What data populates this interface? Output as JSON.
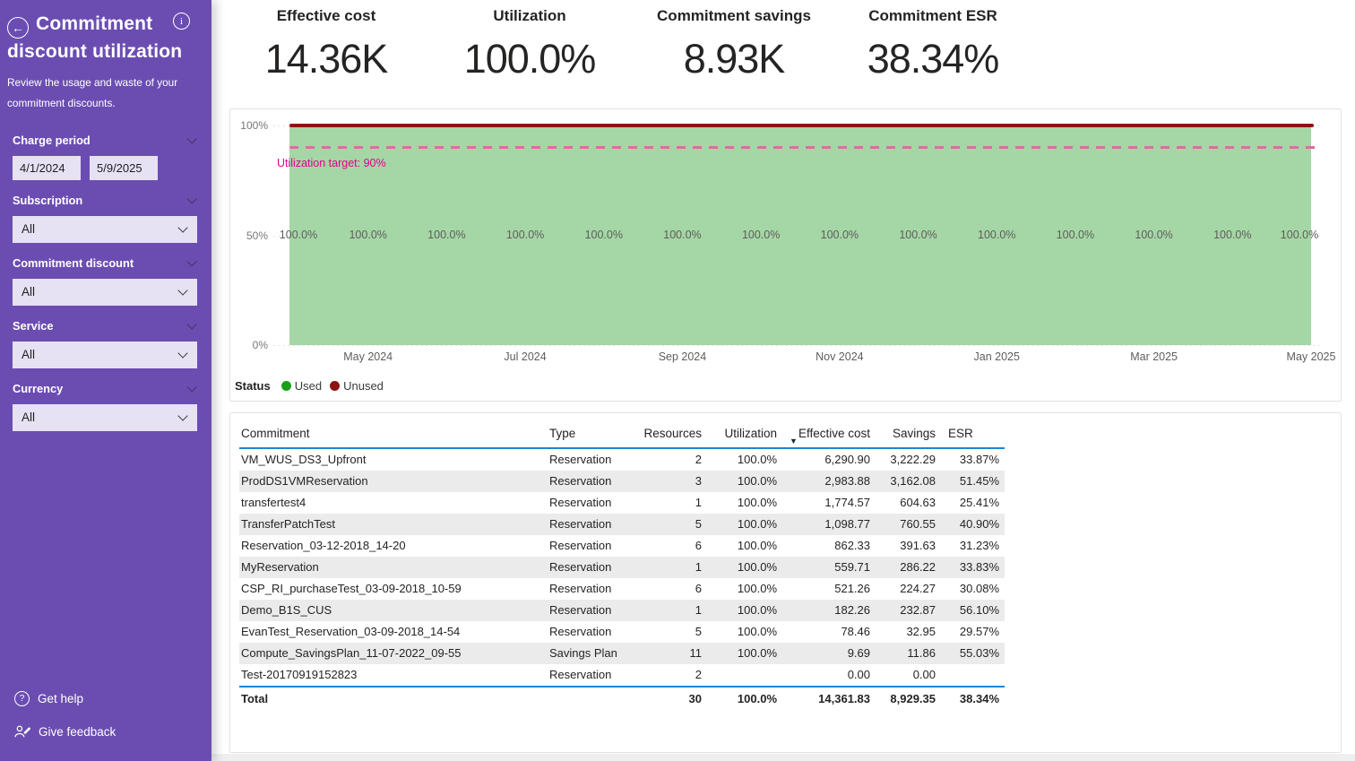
{
  "sidebar": {
    "title": "Commitment discount utilization",
    "subtitle": "Review the usage and waste of your commitment discounts.",
    "back_icon": "←",
    "info_icon": "i",
    "filters": [
      {
        "label": "Charge period",
        "type": "dates",
        "start": "4/1/2024",
        "end": "5/9/2025"
      },
      {
        "label": "Subscription",
        "type": "dropdown",
        "value": "All"
      },
      {
        "label": "Commitment discount",
        "type": "dropdown",
        "value": "All"
      },
      {
        "label": "Service",
        "type": "dropdown",
        "value": "All"
      },
      {
        "label": "Currency",
        "type": "dropdown",
        "value": "All"
      }
    ],
    "footer": {
      "help": "Get help",
      "feedback": "Give feedback"
    }
  },
  "kpis": [
    {
      "label": "Effective cost",
      "value": "14.36K"
    },
    {
      "label": "Utilization",
      "value": "100.0%"
    },
    {
      "label": "Commitment savings",
      "value": "8.93K"
    },
    {
      "label": "Commitment ESR",
      "value": "38.34%"
    }
  ],
  "chart_data": {
    "type": "area",
    "x": [
      "Apr 2024",
      "May 2024",
      "Jun 2024",
      "Jul 2024",
      "Aug 2024",
      "Sep 2024",
      "Oct 2024",
      "Nov 2024",
      "Dec 2024",
      "Jan 2025",
      "Feb 2025",
      "Mar 2025",
      "Apr 2025",
      "May 2025"
    ],
    "series": [
      {
        "name": "Used",
        "values": [
          100.0,
          100.0,
          100.0,
          100.0,
          100.0,
          100.0,
          100.0,
          100.0,
          100.0,
          100.0,
          100.0,
          100.0,
          100.0,
          100.0
        ],
        "color": "#18A018"
      },
      {
        "name": "Unused",
        "values": [
          0,
          0,
          0,
          0,
          0,
          0,
          0,
          0,
          0,
          0,
          0,
          0,
          0,
          0
        ],
        "color": "#8E1313"
      }
    ],
    "data_labels": [
      "100.0%",
      "100.0%",
      "100.0%",
      "100.0%",
      "100.0%",
      "100.0%",
      "100.0%",
      "100.0%",
      "100.0%",
      "100.0%",
      "100.0%",
      "100.0%",
      "100.0%",
      "100.0%"
    ],
    "target": {
      "label": "Utilization target: 90%",
      "value": 90,
      "color": "#E3008C"
    },
    "ylabel": "",
    "xlabel": "",
    "ylim": [
      0,
      100
    ],
    "y_ticks": [
      "100%",
      "50%",
      "0%"
    ],
    "x_ticks": [
      "May 2024",
      "Jul 2024",
      "Sep 2024",
      "Nov 2024",
      "Jan 2025",
      "Mar 2025",
      "May 2025"
    ],
    "legend": {
      "title": "Status",
      "position": "bottom-left",
      "items": [
        {
          "label": "Used",
          "color": "#18A018"
        },
        {
          "label": "Unused",
          "color": "#8E1313"
        }
      ]
    }
  },
  "table": {
    "columns": [
      "Commitment",
      "Type",
      "Resources",
      "Utilization",
      "Effective cost",
      "Savings",
      "ESR"
    ],
    "sort_column": "Effective cost",
    "sort_icon": "▼",
    "rows": [
      [
        "VM_WUS_DS3_Upfront",
        "Reservation",
        "2",
        "100.0%",
        "6,290.90",
        "3,222.29",
        "33.87%"
      ],
      [
        "ProdDS1VMReservation",
        "Reservation",
        "3",
        "100.0%",
        "2,983.88",
        "3,162.08",
        "51.45%"
      ],
      [
        "transfertest4",
        "Reservation",
        "1",
        "100.0%",
        "1,774.57",
        "604.63",
        "25.41%"
      ],
      [
        "TransferPatchTest",
        "Reservation",
        "5",
        "100.0%",
        "1,098.77",
        "760.55",
        "40.90%"
      ],
      [
        "Reservation_03-12-2018_14-20",
        "Reservation",
        "6",
        "100.0%",
        "862.33",
        "391.63",
        "31.23%"
      ],
      [
        "MyReservation",
        "Reservation",
        "1",
        "100.0%",
        "559.71",
        "286.22",
        "33.83%"
      ],
      [
        "CSP_RI_purchaseTest_03-09-2018_10-59",
        "Reservation",
        "6",
        "100.0%",
        "521.26",
        "224.27",
        "30.08%"
      ],
      [
        "Demo_B1S_CUS",
        "Reservation",
        "1",
        "100.0%",
        "182.26",
        "232.87",
        "56.10%"
      ],
      [
        "EvanTest_Reservation_03-09-2018_14-54",
        "Reservation",
        "5",
        "100.0%",
        "78.46",
        "32.95",
        "29.57%"
      ],
      [
        "Compute_SavingsPlan_11-07-2022_09-55",
        "Savings Plan",
        "11",
        "100.0%",
        "9.69",
        "11.86",
        "55.03%"
      ],
      [
        "Test-20170919152823",
        "Reservation",
        "2",
        "",
        "0.00",
        "0.00",
        ""
      ]
    ],
    "total": [
      "Total",
      "",
      "30",
      "100.0%",
      "14,361.83",
      "8,929.35",
      "38.34%"
    ]
  },
  "colors": {
    "sidebar": "#6B4DB2",
    "area_fill": "#A5D6A5",
    "used_line": "#8E1313",
    "target_pink": "#DC6CA6",
    "target_text": "#E3008C",
    "table_accent_blue": "#1B85D8",
    "row_stripe": "#EBEBEB"
  }
}
